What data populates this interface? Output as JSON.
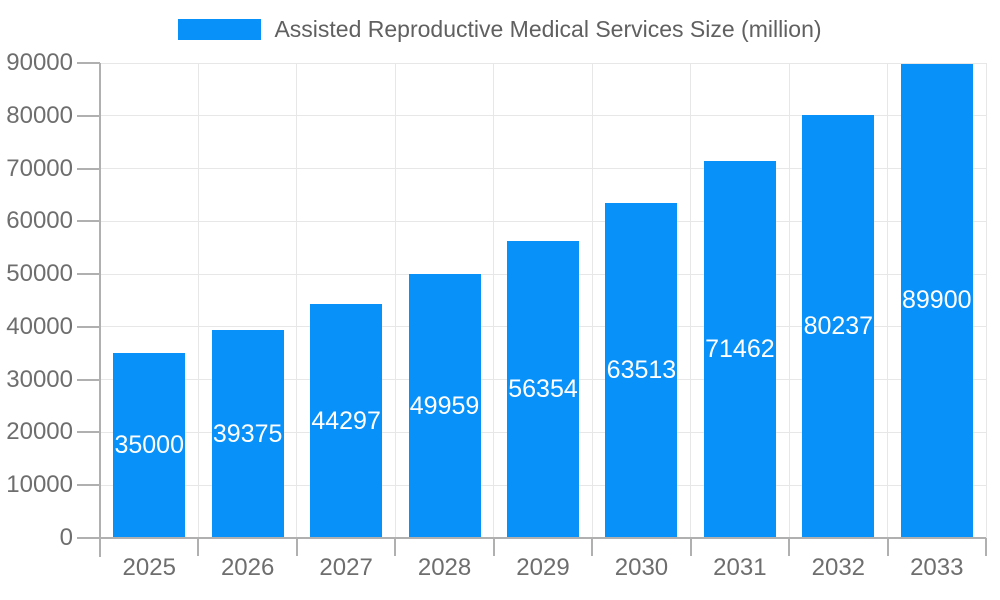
{
  "chart_data": {
    "type": "bar",
    "title": "",
    "legend": "Assisted Reproductive Medical Services Size (million)",
    "categories": [
      "2025",
      "2026",
      "2027",
      "2028",
      "2029",
      "2030",
      "2031",
      "2032",
      "2033"
    ],
    "series": [
      {
        "name": "Assisted Reproductive Medical Services Size (million)",
        "values": [
          35000,
          39375,
          44297,
          49959,
          56354,
          63513,
          71462,
          80237,
          89900
        ]
      }
    ],
    "value_labels": [
      "35000",
      "39375",
      "44297",
      "49959",
      "56354",
      "63513",
      "71462",
      "80237",
      "89900"
    ],
    "xlabel": "",
    "ylabel": "",
    "ylim": [
      0,
      90000
    ],
    "yticks": [
      0,
      10000,
      20000,
      30000,
      40000,
      50000,
      60000,
      70000,
      80000,
      90000
    ],
    "grid": true,
    "legend_position": "top-center",
    "value_label_position": "inside-center",
    "colors": {
      "bar": "#0991fa",
      "grid": "#e7e7e7",
      "axis": "#b0b0b0",
      "tick_text": "#6e6e6e",
      "legend_text": "#606060",
      "value_text": "#ffffff",
      "background": "#ffffff"
    }
  }
}
